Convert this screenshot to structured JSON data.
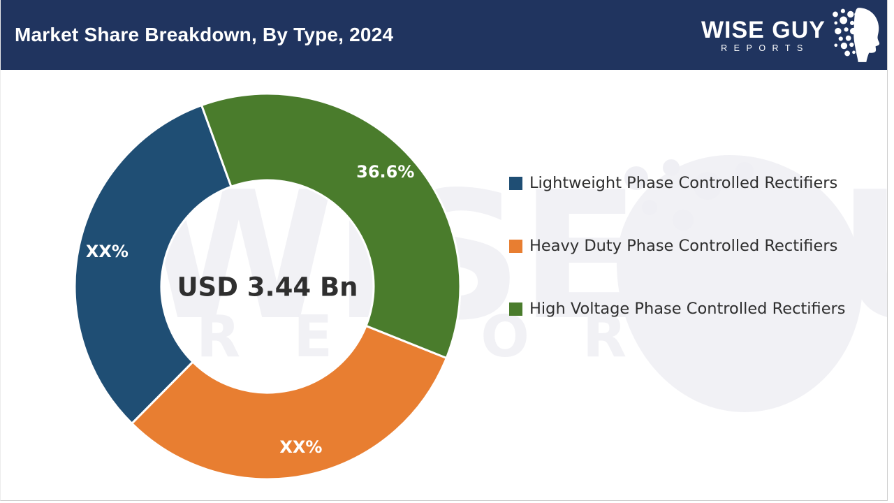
{
  "header": {
    "title": "Market Share Breakdown, By Type, 2024"
  },
  "logo": {
    "name": "WISE GUY",
    "subtitle": "REPORTS"
  },
  "watermark": {
    "line1": "WISE GUY",
    "line2": "REPORTS"
  },
  "colors": {
    "header_bg": "#20345F",
    "blue": "#1F4E74",
    "orange": "#E87E31",
    "green": "#4A7C2C",
    "watermark": "#F1F1F5"
  },
  "chart_data": {
    "type": "pie",
    "subtype": "donut",
    "title": "Market Share Breakdown, By Type, 2024",
    "center_label": "USD 3.44 Bn",
    "legend_position": "right",
    "inner_radius_ratio": 0.55,
    "segments": [
      {
        "name": "Lightweight Phase Controlled Rectifiers",
        "color": "#1F4E74",
        "display_label": "XX%",
        "share_pct_est": 32.0,
        "start_angle": 224.7,
        "end_angle": 340
      },
      {
        "name": "Heavy Duty Phase Controlled Rectifiers",
        "color": "#E87E31",
        "display_label": "XX%",
        "share_pct_est": 31.4,
        "start_angle": 111.8,
        "end_angle": 224.7
      },
      {
        "name": "High Voltage Phase Controlled Rectifiers",
        "color": "#4A7C2C",
        "display_label": "36.6%",
        "share_pct_est": 36.6,
        "start_angle": 340,
        "end_angle": 471.8
      }
    ]
  }
}
